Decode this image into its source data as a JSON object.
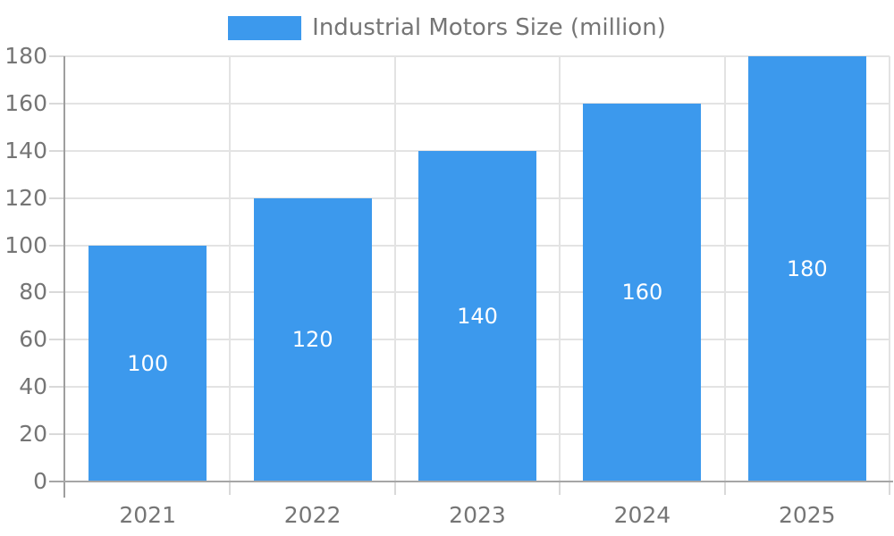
{
  "legend": {
    "label": "Industrial Motors Size (million)"
  },
  "chart_data": {
    "type": "bar",
    "title": "Industrial Motors Size (million)",
    "categories": [
      "2021",
      "2022",
      "2023",
      "2024",
      "2025"
    ],
    "series": [
      {
        "name": "Industrial Motors Size (million)",
        "values": [
          100,
          120,
          140,
          160,
          180
        ]
      }
    ],
    "bar_value_labels": [
      "100",
      "120",
      "140",
      "160",
      "180"
    ],
    "xlabel": "",
    "ylabel": "",
    "ylim": [
      0,
      180
    ],
    "yticks": [
      0,
      20,
      40,
      60,
      80,
      100,
      120,
      140,
      160,
      180
    ],
    "grid": true,
    "legend_position": "top"
  },
  "style": {
    "bar_color": "#3c99ed",
    "bar_label_color": "#ffffff",
    "axis_text_color": "#757575",
    "grid_color": "#e3e3e3",
    "tick_color": "#d9d9d9",
    "axis_line_color": "#9e9e9e",
    "baseline_color": "#a6a6a6",
    "background_color": "#ffffff"
  }
}
